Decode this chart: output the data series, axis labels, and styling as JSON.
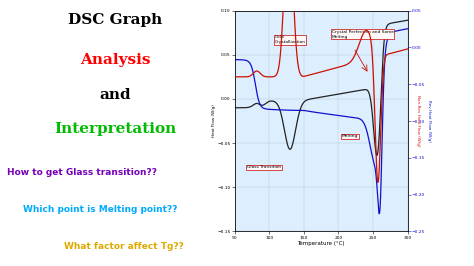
{
  "bg_color": "#ffffff",
  "left_panel": {
    "title_line1": "DSC Graph",
    "title_line2": "Analysis",
    "title_line3": "and",
    "title_line4": "Interpretation",
    "q1": "How to get Glass transition??",
    "q2": "Which point is Melting point??",
    "q3": "What factor affect Tg??",
    "title_color": "#000000",
    "analysis_color": "#ff0000",
    "interp_color": "#00bb00",
    "q1_color": "#7700bb",
    "q2_color": "#00aaff",
    "q3_color": "#ddaa00"
  },
  "graph": {
    "xlim": [
      50,
      300
    ],
    "ylim_left": [
      -0.15,
      0.1
    ],
    "ylim_right": [
      -0.25,
      0.05
    ],
    "xlabel": "Temperature (°C)",
    "ylabel_left": "Heat Flow (W/g)",
    "ylabel_right2": "Non-Rev Heat Flow (W/g)",
    "ylabel_right": "Rev Heat Flow (W/g)",
    "grid_color": "#b8ccdd",
    "bg_color": "#ddeeff"
  }
}
